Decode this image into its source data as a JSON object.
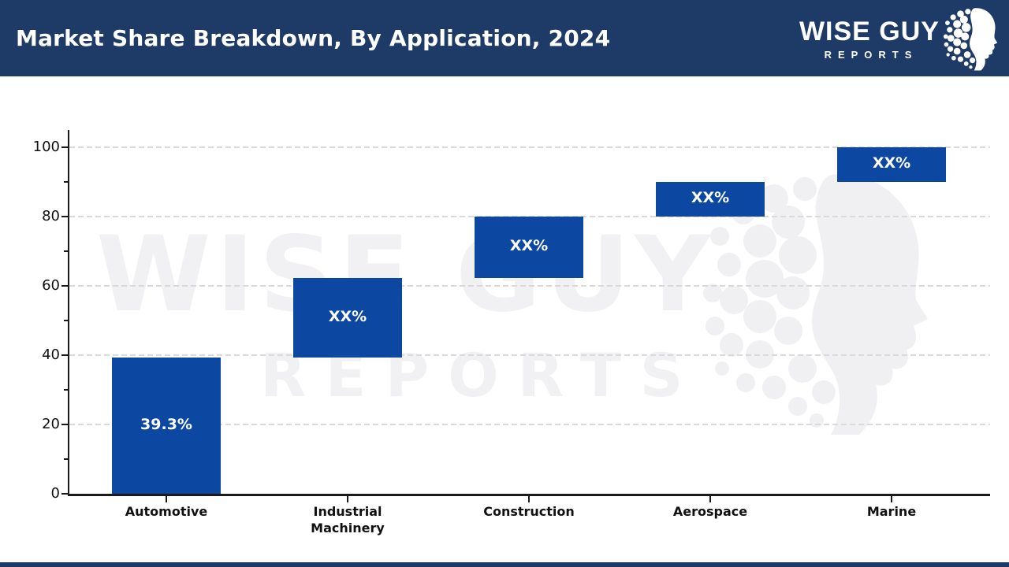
{
  "header": {
    "title": "Market Share Breakdown, By Application, 2024",
    "background_color": "#1e3a67",
    "logo": {
      "line1": "WISE GUY",
      "line2": "REPORTS"
    }
  },
  "watermark": {
    "line1": "WISE GUY",
    "line2": "REPORTS"
  },
  "chart_data": {
    "type": "bar",
    "subtype": "waterfall",
    "title": "Market Share Breakdown, By Application, 2024",
    "categories": [
      "Automotive",
      "Industrial\nMachinery",
      "Construction",
      "Aerospace",
      "Marine"
    ],
    "segments": [
      {
        "category": "Automotive",
        "start": 0,
        "end": 39.3,
        "label": "39.3%"
      },
      {
        "category": "Industrial Machinery",
        "start": 39.3,
        "end": 62.2,
        "label": "XX%"
      },
      {
        "category": "Construction",
        "start": 62.2,
        "end": 80.1,
        "label": "XX%"
      },
      {
        "category": "Aerospace",
        "start": 80.1,
        "end": 89.9,
        "label": "XX%"
      },
      {
        "category": "Marine",
        "start": 89.9,
        "end": 100,
        "label": "XX%"
      }
    ],
    "yticks": [
      0,
      20,
      40,
      60,
      80,
      100
    ],
    "yminorticks": [
      10,
      30,
      50,
      70,
      90
    ],
    "ylim": [
      0,
      105
    ],
    "xlabel": "",
    "ylabel": "",
    "grid": "horizontal-dashed",
    "legend": "none",
    "bar_color": "#0c47a1",
    "bar_label_color": "#ffffff",
    "gridline_color": "#d9d9d9",
    "axis_color": "#1a1a1a"
  }
}
